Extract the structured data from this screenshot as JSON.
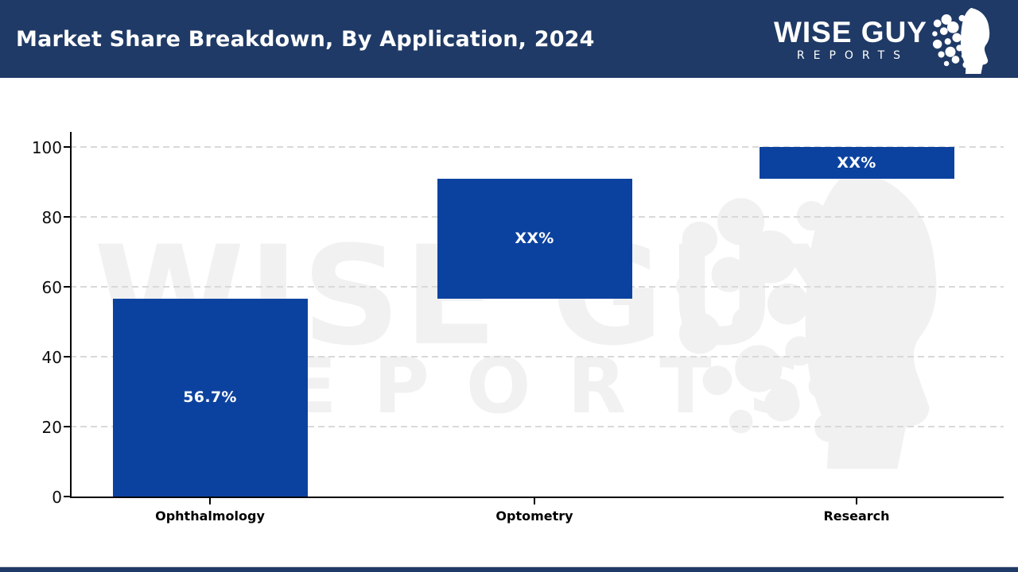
{
  "header": {
    "title": "Market Share Breakdown, By Application, 2024",
    "logo": {
      "line1": "WISE GUY",
      "line2": "REPORTS"
    }
  },
  "watermark": {
    "line1": "WISE GUY",
    "line2": "REPORTS"
  },
  "colors": {
    "header_bg": "#1f3a66",
    "footer_bg": "#1f3a66",
    "bar": "#0c429f",
    "bar_label": "#ffffff",
    "grid": "#d9d9d9",
    "axis": "#000000",
    "watermark": "#f1f1f1",
    "title_text": "#ffffff"
  },
  "chart_data": {
    "type": "bar",
    "subtype": "waterfall",
    "title": "Market Share Breakdown, By Application, 2024",
    "categories": [
      "Ophthalmology",
      "Optometry",
      "Research"
    ],
    "bars": [
      {
        "category": "Ophthalmology",
        "from": 0,
        "to": 56.7,
        "label": "56.7%"
      },
      {
        "category": "Optometry",
        "from": 56.7,
        "to": 91,
        "label": "XX%"
      },
      {
        "category": "Research",
        "from": 91,
        "to": 100,
        "label": "XX%"
      }
    ],
    "ylabel": "",
    "xlabel": "",
    "ylim": [
      0,
      105
    ],
    "y_ticks": [
      0,
      20,
      40,
      60,
      80,
      100
    ],
    "grid": "horizontal-dashed",
    "legend": "none"
  }
}
